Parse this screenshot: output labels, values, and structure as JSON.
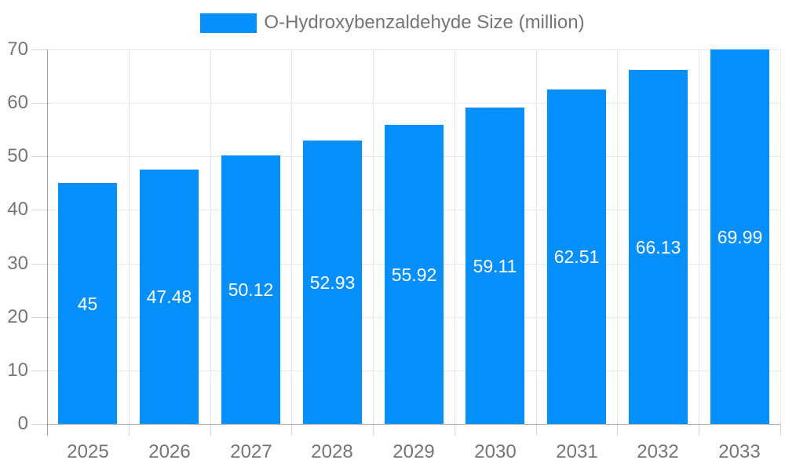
{
  "colors": {
    "bar": "#048ffb",
    "grid": "#e8e8e8",
    "tick": "#d4d4d4",
    "axis_y": "#9a9a9a",
    "axis_x": "#a8a8a8",
    "label_text": "#757575",
    "bar_label_text": "#ffffff",
    "background": "#ffffff"
  },
  "legend": {
    "label": "O-Hydroxybenzaldehyde Size (million)"
  },
  "chart_data": {
    "type": "bar",
    "title": "O-Hydroxybenzaldehyde Size (million)",
    "categories": [
      "2025",
      "2026",
      "2027",
      "2028",
      "2029",
      "2030",
      "2031",
      "2032",
      "2033"
    ],
    "values": [
      45,
      47.48,
      50.12,
      52.93,
      55.92,
      59.11,
      62.51,
      66.13,
      69.99
    ],
    "value_labels": [
      "45",
      "47.48",
      "50.12",
      "52.93",
      "55.92",
      "59.11",
      "62.51",
      "66.13",
      "69.99"
    ],
    "series_name": "O-Hydroxybenzaldehyde Size (million)",
    "xlabel": "",
    "ylabel": "",
    "ylim": [
      0,
      70
    ],
    "ytick_step": 10,
    "y_tick_labels": [
      "0",
      "10",
      "20",
      "30",
      "40",
      "50",
      "60",
      "70"
    ],
    "grid": true,
    "legend_position": "top"
  }
}
